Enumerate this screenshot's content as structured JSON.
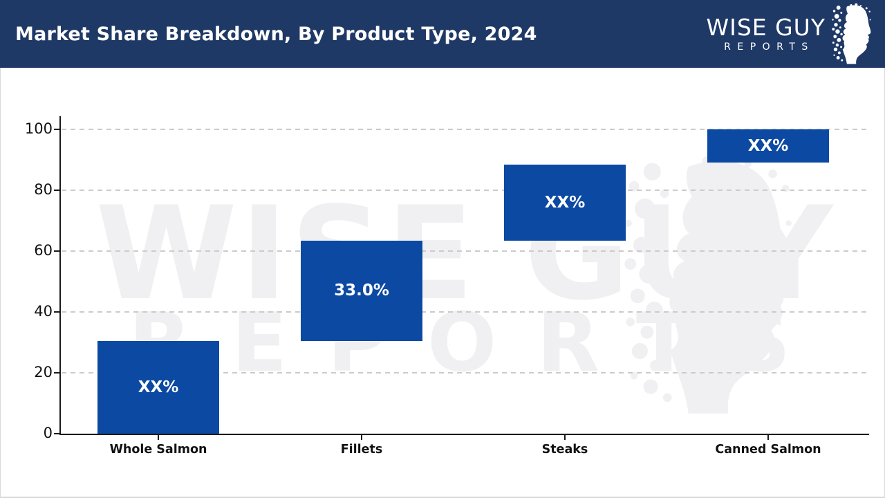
{
  "header": {
    "logo": {
      "line1": "WISE GUY",
      "line2": "REPORTS"
    }
  },
  "watermark": {
    "line1": "WISE GUY",
    "line2": "REPORTS"
  },
  "chart_data": {
    "type": "bar",
    "subtype": "waterfall-stepped",
    "title": "Market Share Breakdown, By Product Type, 2024",
    "categories": [
      "Whole Salmon",
      "Fillets",
      "Steaks",
      "Canned Salmon"
    ],
    "segments": [
      {
        "category": "Whole Salmon",
        "start": 0,
        "end": 30.5,
        "label": "XX%"
      },
      {
        "category": "Fillets",
        "start": 30.5,
        "end": 63.5,
        "label": "33.0%"
      },
      {
        "category": "Steaks",
        "start": 63.5,
        "end": 88.5,
        "label": "XX%"
      },
      {
        "category": "Canned Salmon",
        "start": 89,
        "end": 100,
        "label": "XX%"
      }
    ],
    "yticks": [
      0,
      20,
      40,
      60,
      80,
      100
    ],
    "ylim": [
      0,
      105
    ],
    "xlabel": "",
    "ylabel": "",
    "grid": "dashed-horizontal",
    "legend": "none",
    "colors": {
      "bar": "#0c49a2",
      "grid": "#cbcbcb",
      "axis": "#1a1a1a",
      "bar_label": "#ffffff",
      "header_bg": "#1f3966",
      "watermark": "#f0f0f2",
      "border": "#d9d9d9"
    }
  }
}
